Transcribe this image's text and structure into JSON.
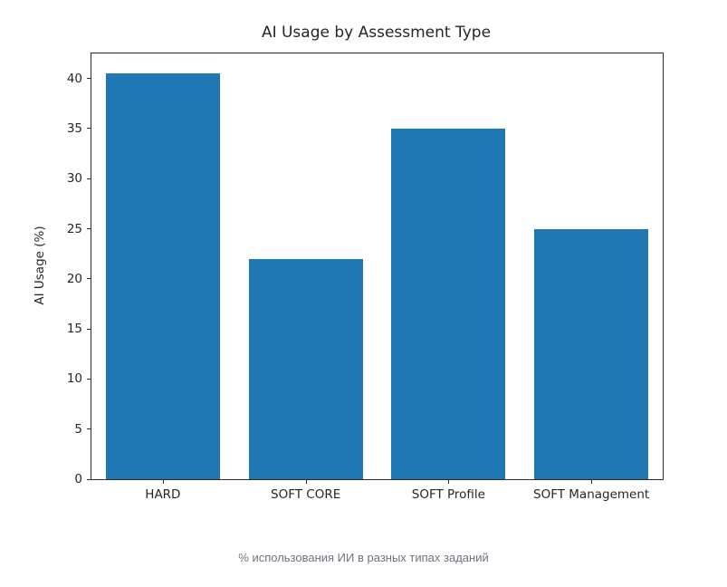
{
  "chart_data": {
    "type": "bar",
    "title": "AI Usage by Assessment Type",
    "ylabel": "AI Usage (%)",
    "xlabel": "",
    "categories": [
      "HARD",
      "SOFT CORE",
      "SOFT Profile",
      "SOFT Management"
    ],
    "values": [
      40.5,
      22,
      35,
      25
    ],
    "yticks": [
      0,
      5,
      10,
      15,
      20,
      25,
      30,
      35,
      40
    ],
    "ylim": [
      0,
      42.5
    ],
    "grid": false,
    "bar_color": "#1f77b4",
    "axis_color": "#2b2b2b",
    "bar_width_fraction": 0.8
  },
  "caption": {
    "text": "% использования ИИ в разных типах заданий"
  }
}
